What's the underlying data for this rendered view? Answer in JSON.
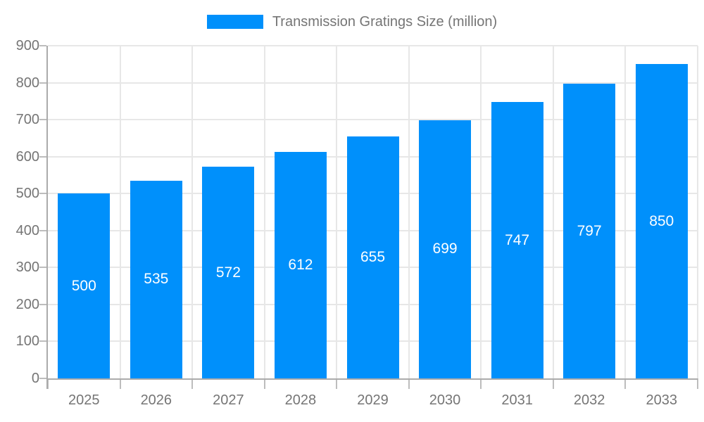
{
  "legend": {
    "label": "Transmission Gratings Size (million)",
    "swatch_color": "#0090FB"
  },
  "chart_data": {
    "type": "bar",
    "title": "Transmission Gratings Size (million)",
    "series_name": "Transmission Gratings Size (million)",
    "categories": [
      "2025",
      "2026",
      "2027",
      "2028",
      "2029",
      "2030",
      "2031",
      "2032",
      "2033"
    ],
    "values": [
      500,
      535,
      572,
      612,
      655,
      699,
      747,
      797,
      850
    ],
    "xlabel": "",
    "ylabel": "",
    "ylim": [
      0,
      900
    ],
    "yticks": [
      0,
      100,
      200,
      300,
      400,
      500,
      600,
      700,
      800,
      900
    ],
    "grid": true,
    "legend_position": "top",
    "value_labels": "inside, white, centered",
    "colors": {
      "bar": "#0090FB",
      "grid": "#e7e7e7",
      "axis": "#ababab",
      "tick": "#bdbdbd",
      "label": "#757575",
      "value_label": "#ffffff",
      "background": "#ffffff"
    }
  }
}
